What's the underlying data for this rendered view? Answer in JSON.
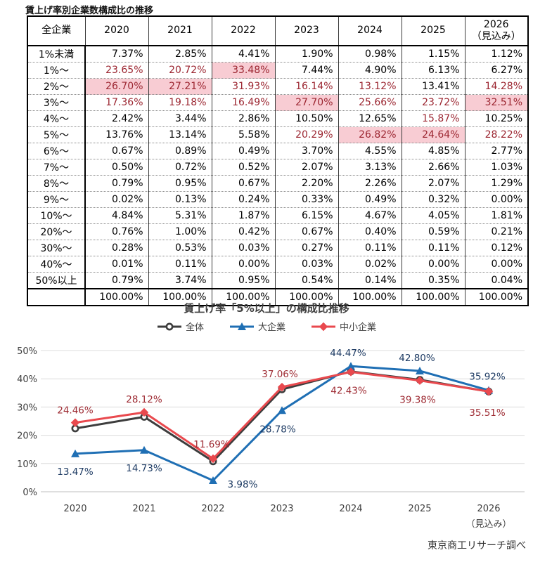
{
  "table": {
    "title": "賃上げ率別企業数構成比の推移",
    "header": [
      "全企業",
      "2020",
      "2021",
      "2022",
      "2023",
      "2024",
      "2025",
      "2026\n（見込み）"
    ],
    "rows": [
      {
        "label": "1%未満",
        "values": [
          "7.37%",
          "2.85%",
          "4.41%",
          "1.90%",
          "0.98%",
          "1.15%",
          "1.12%"
        ],
        "styles": [
          "n",
          "n",
          "n",
          "n",
          "n",
          "n",
          "n"
        ]
      },
      {
        "label": "1%～",
        "values": [
          "23.65%",
          "20.72%",
          "33.48%",
          "7.44%",
          "4.90%",
          "6.13%",
          "6.27%"
        ],
        "styles": [
          "r",
          "r",
          "h",
          "n",
          "n",
          "n",
          "n"
        ]
      },
      {
        "label": "2%～",
        "values": [
          "26.70%",
          "27.21%",
          "31.93%",
          "16.14%",
          "13.12%",
          "13.41%",
          "14.28%"
        ],
        "styles": [
          "h",
          "h",
          "r",
          "r",
          "r",
          "n",
          "r"
        ]
      },
      {
        "label": "3%～",
        "values": [
          "17.36%",
          "19.18%",
          "16.49%",
          "27.70%",
          "25.66%",
          "23.72%",
          "32.51%"
        ],
        "styles": [
          "r",
          "r",
          "r",
          "h",
          "r",
          "r",
          "h"
        ]
      },
      {
        "label": "4%～",
        "values": [
          "2.42%",
          "3.44%",
          "2.86%",
          "10.50%",
          "12.65%",
          "15.87%",
          "10.25%"
        ],
        "styles": [
          "n",
          "n",
          "n",
          "n",
          "n",
          "r",
          "n"
        ]
      },
      {
        "label": "5%～",
        "values": [
          "13.76%",
          "13.14%",
          "5.58%",
          "20.29%",
          "26.82%",
          "24.64%",
          "28.22%"
        ],
        "styles": [
          "n",
          "n",
          "n",
          "r",
          "h",
          "h",
          "r"
        ]
      },
      {
        "label": "6%～",
        "values": [
          "0.67%",
          "0.89%",
          "0.49%",
          "3.70%",
          "4.55%",
          "4.85%",
          "2.77%"
        ],
        "styles": [
          "n",
          "n",
          "n",
          "n",
          "n",
          "n",
          "n"
        ]
      },
      {
        "label": "7%～",
        "values": [
          "0.50%",
          "0.72%",
          "0.52%",
          "2.07%",
          "3.13%",
          "2.66%",
          "1.03%"
        ],
        "styles": [
          "n",
          "n",
          "n",
          "n",
          "n",
          "n",
          "n"
        ]
      },
      {
        "label": "8%～",
        "values": [
          "0.79%",
          "0.95%",
          "0.67%",
          "2.20%",
          "2.26%",
          "2.07%",
          "1.29%"
        ],
        "styles": [
          "n",
          "n",
          "n",
          "n",
          "n",
          "n",
          "n"
        ]
      },
      {
        "label": "9%～",
        "values": [
          "0.02%",
          "0.13%",
          "0.24%",
          "0.33%",
          "0.49%",
          "0.32%",
          "0.00%"
        ],
        "styles": [
          "n",
          "n",
          "n",
          "n",
          "n",
          "n",
          "n"
        ]
      },
      {
        "label": "10%～",
        "values": [
          "4.84%",
          "5.31%",
          "1.87%",
          "6.15%",
          "4.67%",
          "4.05%",
          "1.81%"
        ],
        "styles": [
          "n",
          "n",
          "n",
          "n",
          "n",
          "n",
          "n"
        ]
      },
      {
        "label": "20%～",
        "values": [
          "0.76%",
          "1.00%",
          "0.42%",
          "0.67%",
          "0.40%",
          "0.59%",
          "0.21%"
        ],
        "styles": [
          "n",
          "n",
          "n",
          "n",
          "n",
          "n",
          "n"
        ]
      },
      {
        "label": "30%～",
        "values": [
          "0.28%",
          "0.53%",
          "0.03%",
          "0.27%",
          "0.11%",
          "0.11%",
          "0.12%"
        ],
        "styles": [
          "n",
          "n",
          "n",
          "n",
          "n",
          "n",
          "n"
        ]
      },
      {
        "label": "40%～",
        "values": [
          "0.01%",
          "0.11%",
          "0.00%",
          "0.03%",
          "0.02%",
          "0.00%",
          "0.00%"
        ],
        "styles": [
          "n",
          "n",
          "n",
          "n",
          "n",
          "n",
          "n"
        ]
      },
      {
        "label": "50%以上",
        "values": [
          "0.79%",
          "3.74%",
          "0.95%",
          "0.54%",
          "0.14%",
          "0.35%",
          "0.04%"
        ],
        "styles": [
          "n",
          "n",
          "n",
          "n",
          "n",
          "n",
          "n"
        ]
      }
    ],
    "total": {
      "label": "",
      "values": [
        "100.00%",
        "100.00%",
        "100.00%",
        "100.00%",
        "100.00%",
        "100.00%",
        "100.00%"
      ]
    },
    "highlight_bg": "#F8CCD3",
    "highlight_text": "#9C2631"
  },
  "chart_data": {
    "type": "line",
    "title": "賃上げ率「5%以上」の構成比推移",
    "categories": [
      "2020",
      "2021",
      "2022",
      "2023",
      "2024",
      "2025",
      "2026\n（見込み）"
    ],
    "ylim": [
      0,
      50
    ],
    "yticks": [
      "0%",
      "10%",
      "20%",
      "30%",
      "40%",
      "50%"
    ],
    "grid": true,
    "legend_position": "top",
    "series": [
      {
        "name": "全体",
        "color": "#3d3d3d",
        "label_color": "#404040",
        "marker": "circle",
        "values": [
          22.42,
          26.52,
          10.77,
          36.25,
          42.59,
          39.64,
          35.49
        ],
        "labels_shown": false
      },
      {
        "name": "大企業",
        "color": "#1F6FB4",
        "label_color": "#1F3C64",
        "marker": "triangle",
        "values": [
          13.47,
          14.73,
          3.98,
          28.78,
          44.47,
          42.8,
          35.92
        ],
        "labels_shown": true
      },
      {
        "name": "中小企業",
        "color": "#E9494E",
        "label_color": "#9E2B33",
        "marker": "diamond",
        "values": [
          24.46,
          28.12,
          11.69,
          37.06,
          42.43,
          39.38,
          35.51
        ],
        "labels_shown": true
      }
    ],
    "source": "東京商工リサーチ調べ"
  }
}
